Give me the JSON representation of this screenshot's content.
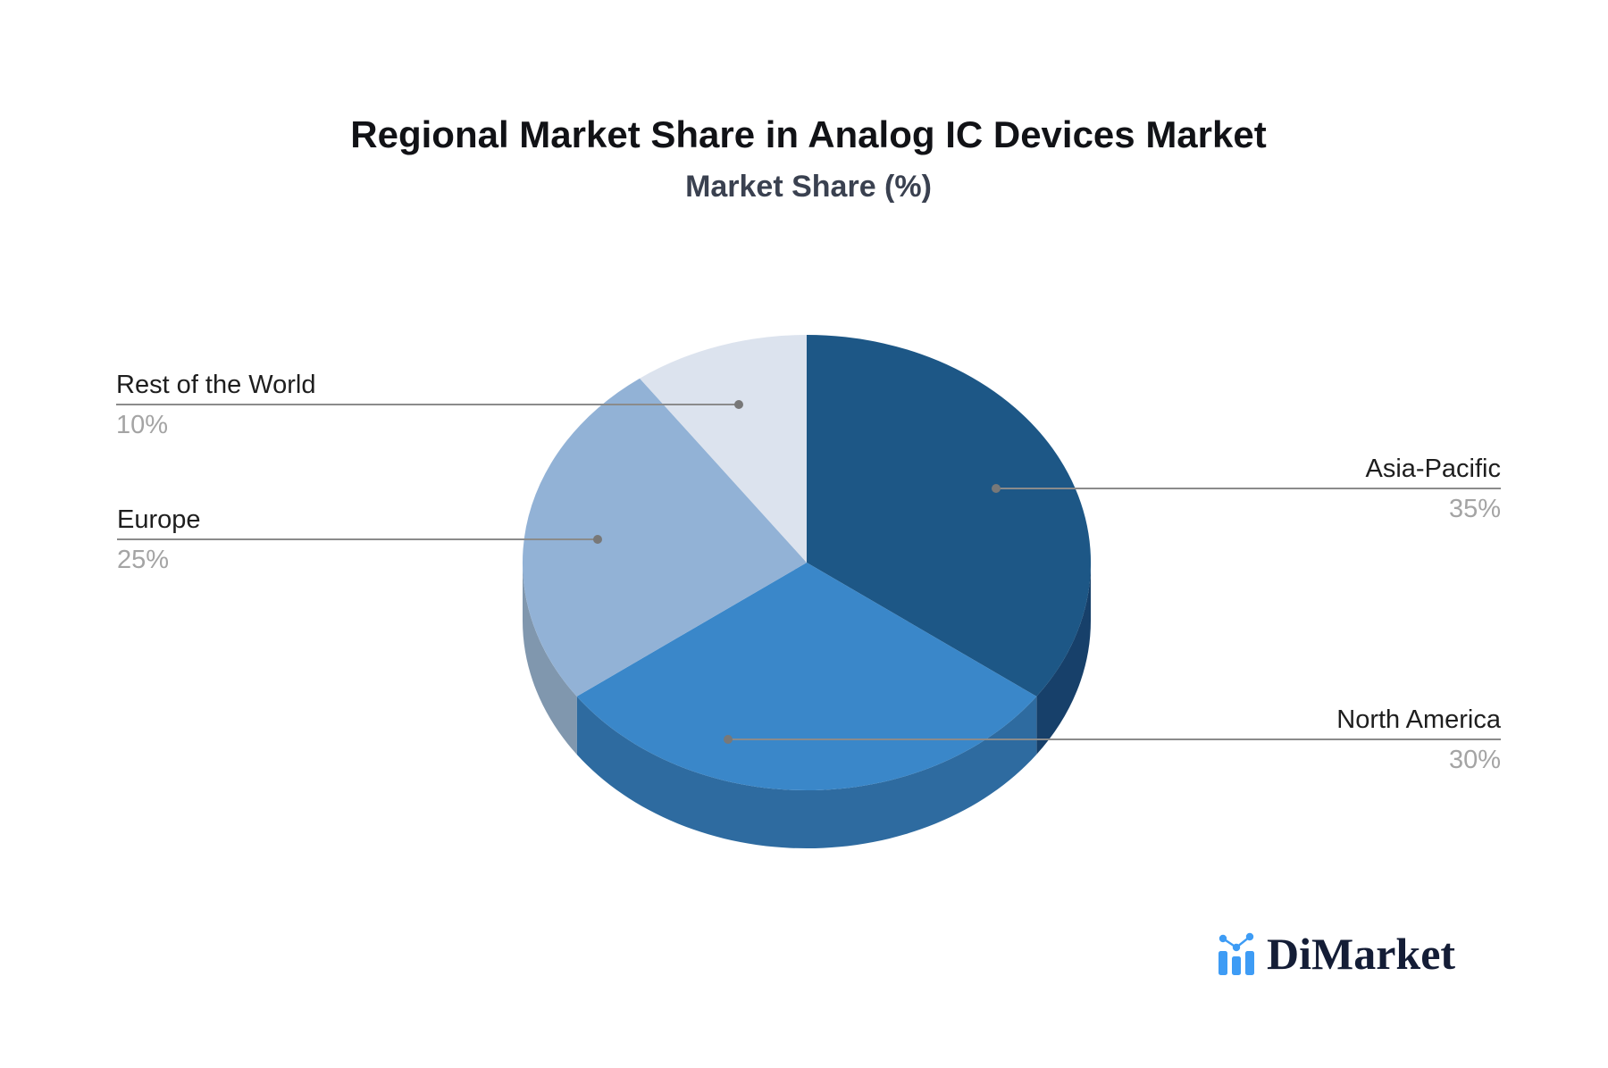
{
  "chart_data": {
    "type": "pie",
    "three_d": true,
    "title": "Regional Market Share in Analog IC Devices Market",
    "subtitle": "Market Share (%)",
    "categories": [
      "Asia-Pacific",
      "North America",
      "Europe",
      "Rest of the World"
    ],
    "values": [
      35,
      30,
      25,
      10
    ],
    "unit": "%",
    "start_angle": "12-oclock",
    "direction": "clockwise",
    "legend_position": "callout-labels",
    "slice_colors": [
      "#1d5786",
      "#3a87c9",
      "#92b2d6",
      "#dce3ee"
    ],
    "slice_side_colors": [
      "#17406a",
      "#2e6ba0",
      "#8097ae",
      null
    ]
  },
  "callouts": [
    {
      "label": "Rest of the World",
      "value": "10%"
    },
    {
      "label": "Europe",
      "value": "25%"
    },
    {
      "label": "Asia-Pacific",
      "value": "35%"
    },
    {
      "label": "North America",
      "value": "30%"
    }
  ],
  "logo": {
    "icon": "bar-line-chart-icon",
    "text": "DiMarket",
    "icon_color": "#3e9cf5",
    "text_color": "#141d36"
  },
  "colors": {
    "label_text": "#1e1e1e",
    "value_text": "#a4a4a4",
    "leader_line": "#8b8b8b",
    "leader_dot": "#787878",
    "title_text": "#111216",
    "subtitle_text": "#3a4150",
    "background": "#ffffff"
  }
}
